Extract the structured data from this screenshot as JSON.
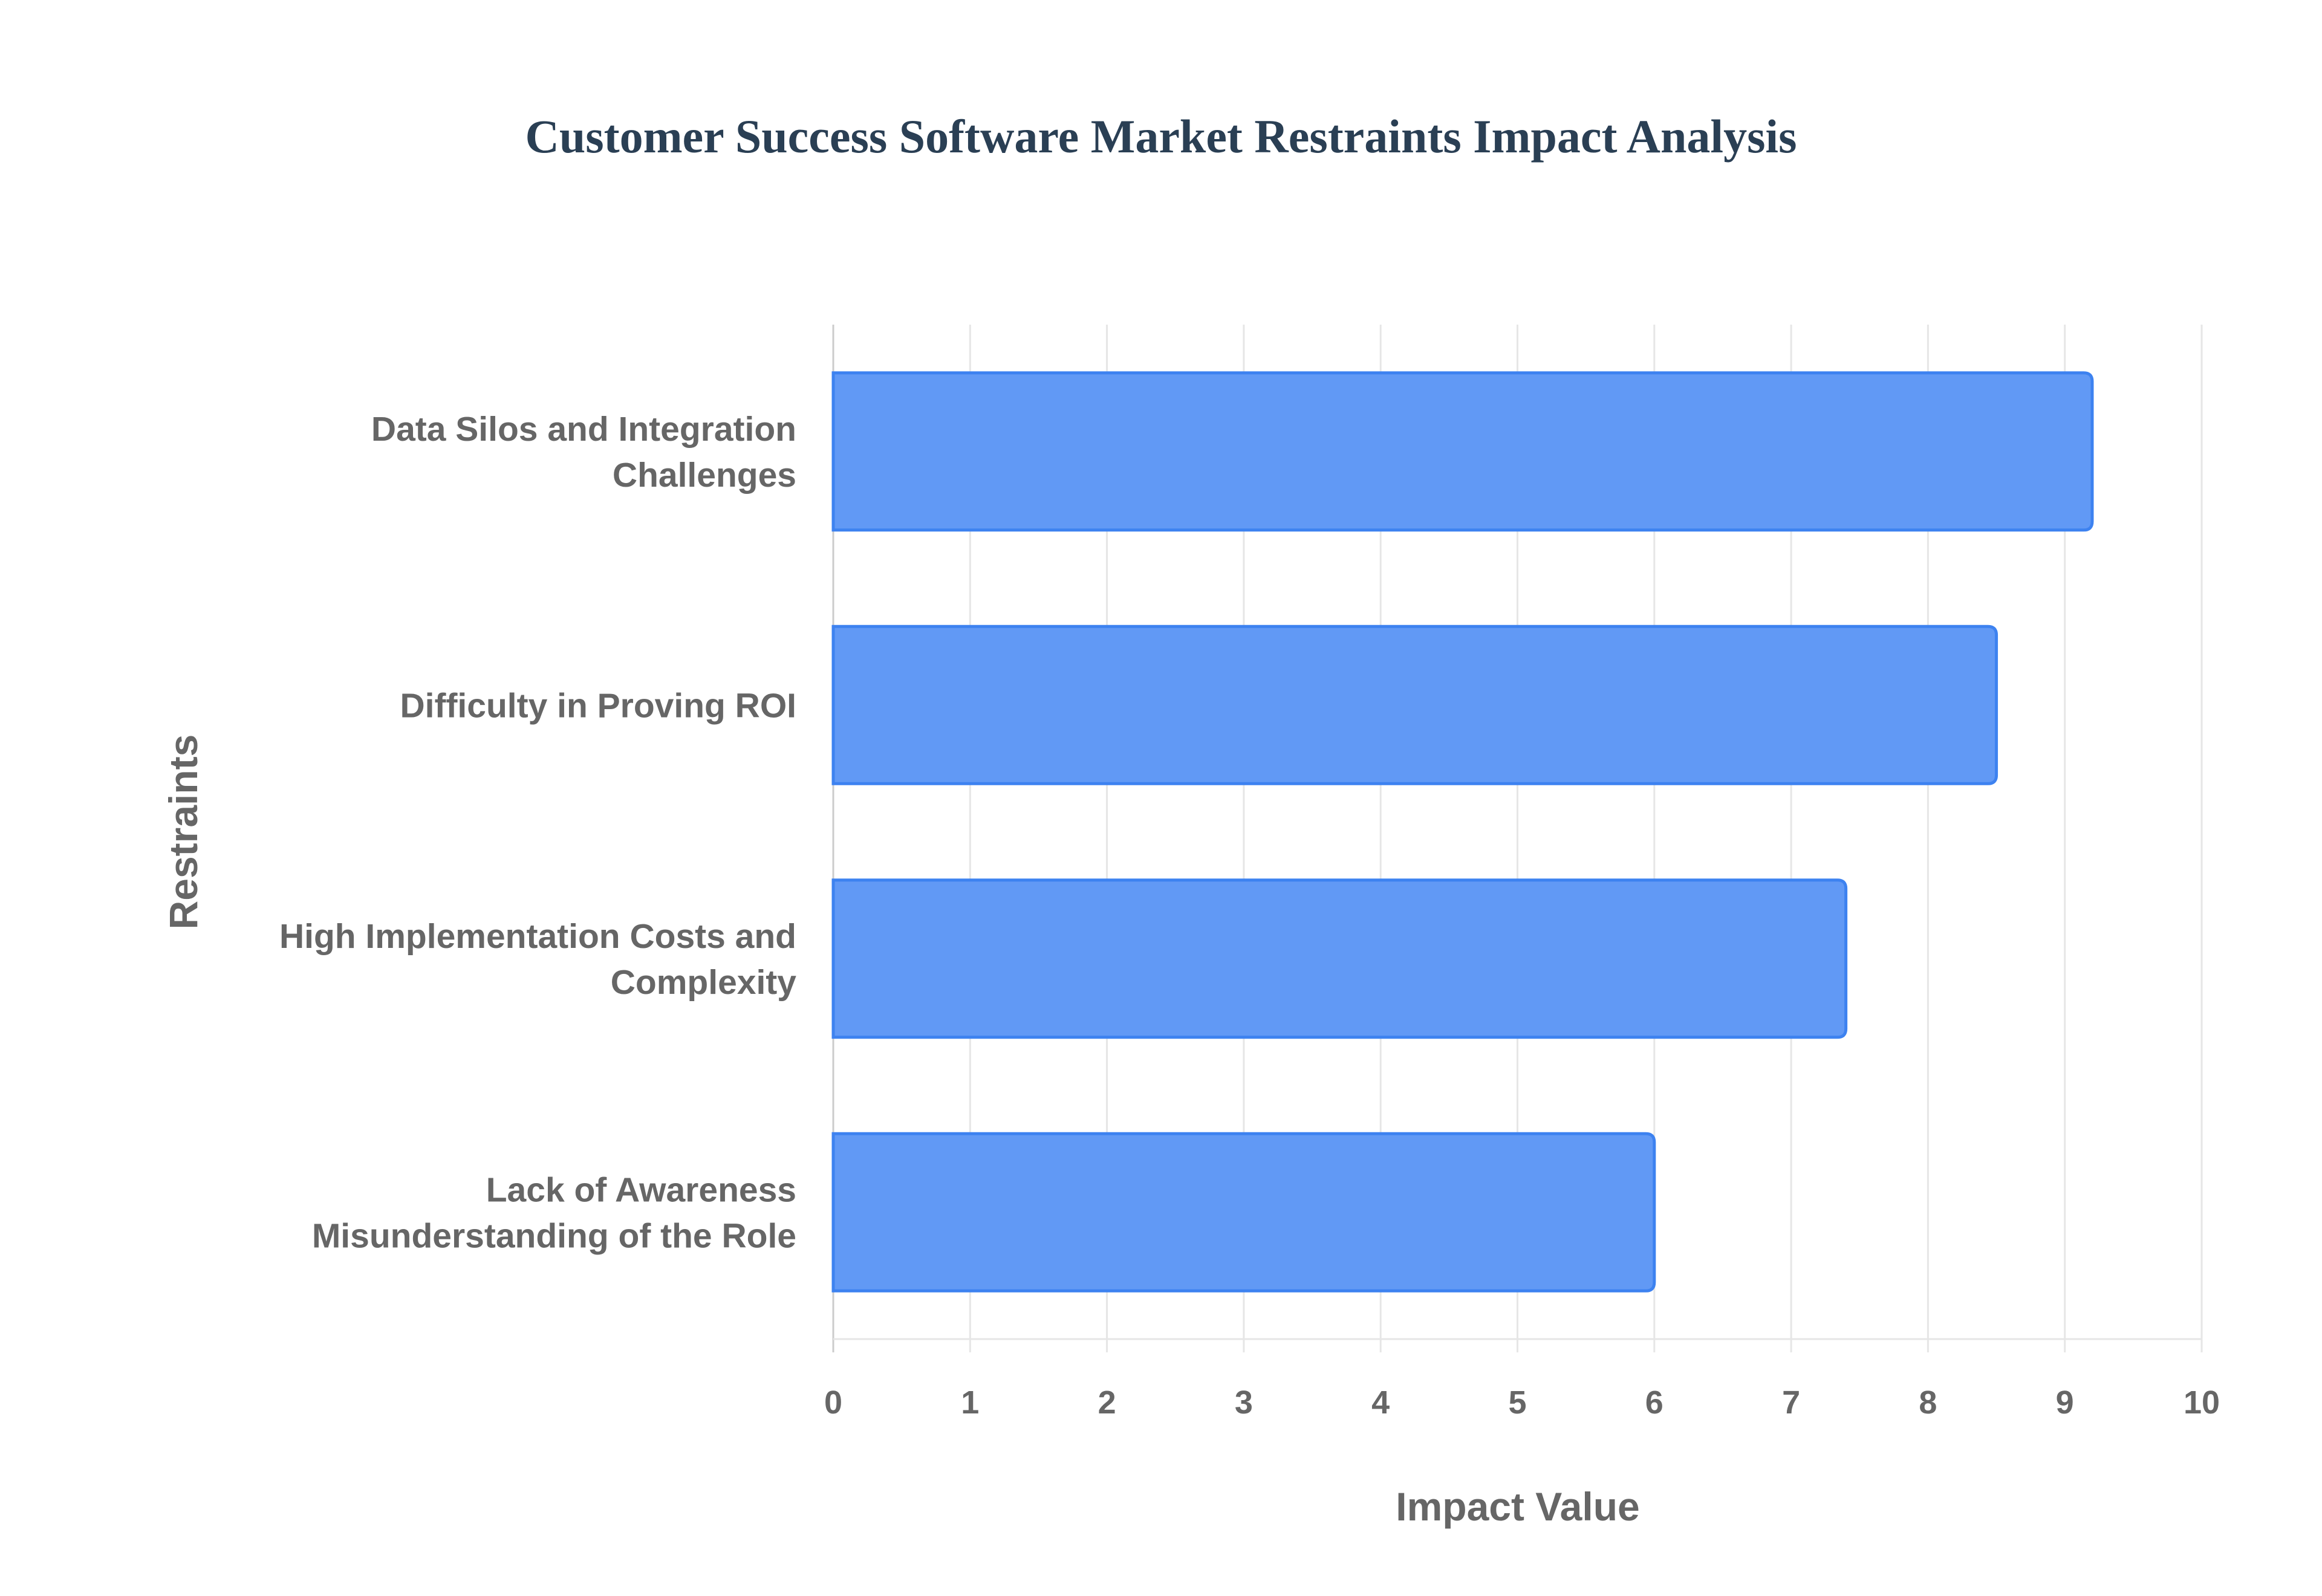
{
  "chart_data": {
    "type": "bar",
    "orientation": "horizontal",
    "title": "Customer Success Software Market Restraints Impact Analysis",
    "xlabel": "Impact Value",
    "ylabel": "Restraints",
    "xlim": [
      0,
      10
    ],
    "xticks": [
      "0",
      "1",
      "2",
      "3",
      "4",
      "5",
      "6",
      "7",
      "8",
      "9",
      "10"
    ],
    "grid": true,
    "categories": [
      [
        "Data Silos and Integration",
        "Challenges"
      ],
      [
        "Difficulty in Proving ROI"
      ],
      [
        "High Implementation Costs and",
        "Complexity"
      ],
      [
        "Lack of Awareness",
        "Misunderstanding of the Role"
      ]
    ],
    "values": [
      9.2,
      8.5,
      7.4,
      6.0
    ],
    "colors": {
      "bar_fill": "#6199F5",
      "bar_border": "#3D82F0",
      "grid": "#e6e6e6"
    }
  }
}
